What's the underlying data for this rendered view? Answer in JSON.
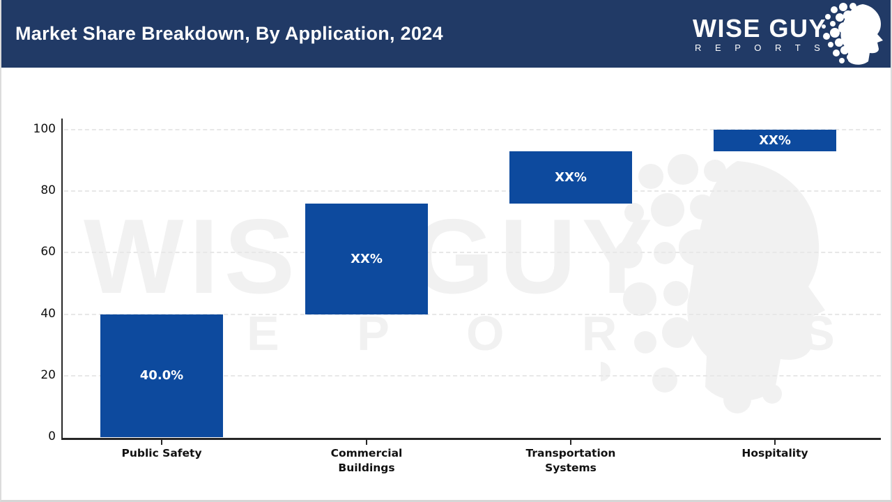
{
  "header": {
    "title": "Market Share Breakdown, By Application, 2024",
    "logo": {
      "wordmark": "WISE GUY",
      "subtitle": "R E P O R T S"
    }
  },
  "watermark": {
    "line1": "WISE GUY",
    "line2": "R E P O R T S"
  },
  "chart_data": {
    "type": "bar",
    "subtype": "waterfall",
    "title": "Market Share Breakdown, By Application, 2024",
    "categories": [
      "Public Safety",
      "Commercial Buildings",
      "Transportation Systems",
      "Hospitality"
    ],
    "categories_display": [
      "Public Safety",
      "Commercial\nBuildings",
      "Transportation\nSystems",
      "Hospitality"
    ],
    "segments": [
      {
        "category": "Public Safety",
        "start": 0,
        "end": 40,
        "value": 40,
        "label": "40.0%"
      },
      {
        "category": "Commercial Buildings",
        "start": 40,
        "end": 76,
        "value": 36,
        "label": "XX%"
      },
      {
        "category": "Transportation Systems",
        "start": 76,
        "end": 93,
        "value": 17,
        "label": "XX%"
      },
      {
        "category": "Hospitality",
        "start": 93,
        "end": 100,
        "value": 7,
        "label": "XX%"
      }
    ],
    "xlabel": "",
    "ylabel": "",
    "ylim": [
      0,
      100
    ],
    "y_ticks": [
      0,
      20,
      40,
      60,
      80,
      100
    ],
    "grid": "horizontal-dashed",
    "legend": "none"
  },
  "colors": {
    "header_bg": "#213a66",
    "bar": "#0d4a9e",
    "bar_label": "#ffffff",
    "axis": "#262626",
    "gridline": "#e7e7e7",
    "watermark": "#f1f1f1",
    "page_border": "#dcdcdc"
  }
}
